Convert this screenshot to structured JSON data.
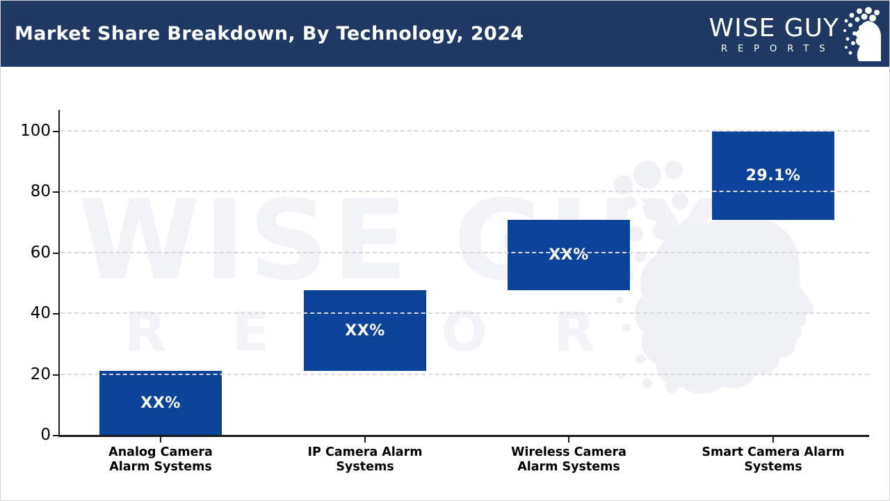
{
  "header": {
    "title": "Market Share Breakdown, By Technology, 2024"
  },
  "logo": {
    "line1": "WISE GUY",
    "line2": "REPORTS"
  },
  "watermark": {
    "line1": "WISE GUY",
    "line2": "REPORTS"
  },
  "chart_data": {
    "type": "bar",
    "subtype": "floating-waterfall",
    "title": "Market Share Breakdown, By Technology, 2024",
    "categories": [
      [
        "Analog Camera",
        "Alarm Systems"
      ],
      [
        "IP Camera Alarm",
        "Systems"
      ],
      [
        "Wireless Camera",
        "Alarm Systems"
      ],
      [
        "Smart Camera Alarm",
        "Systems"
      ]
    ],
    "bars": [
      {
        "category": "Analog Camera Alarm Systems",
        "start": 0,
        "end": 21.2,
        "label": "XX%"
      },
      {
        "category": "IP Camera Alarm Systems",
        "start": 21.2,
        "end": 47.8,
        "label": "XX%"
      },
      {
        "category": "Wireless Camera Alarm Systems",
        "start": 47.8,
        "end": 70.9,
        "label": "XX%"
      },
      {
        "category": "Smart Camera Alarm Systems",
        "start": 70.9,
        "end": 100,
        "label": "29.1%"
      }
    ],
    "yticks": [
      0,
      20,
      40,
      60,
      80,
      100
    ],
    "ylim": [
      0,
      100
    ],
    "grid": "horizontal-dashed",
    "legend": "none",
    "bar_color": "#0b4398",
    "header_color": "#1f3864",
    "gridline_color": "#d8d8d8"
  }
}
